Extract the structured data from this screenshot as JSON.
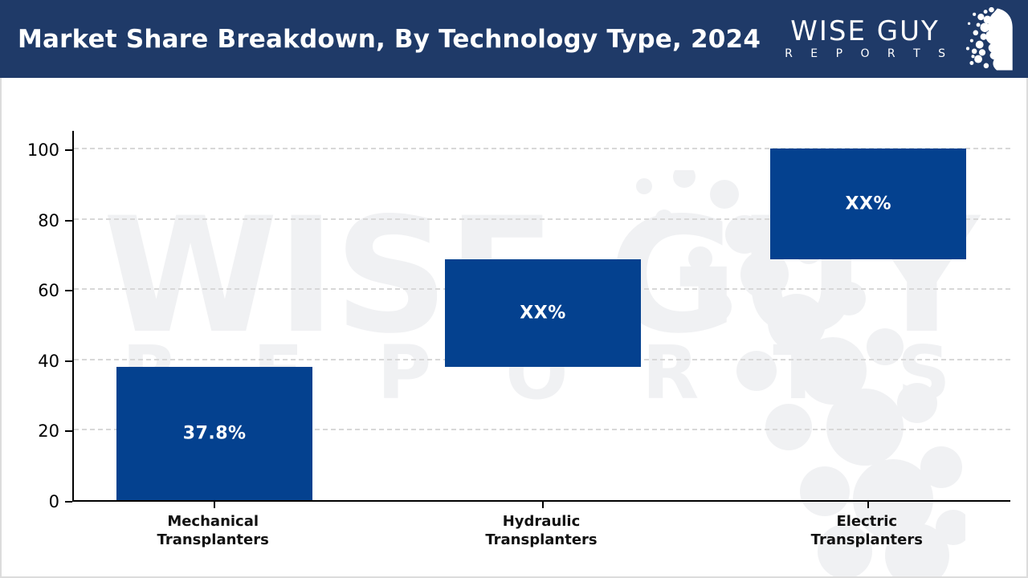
{
  "header": {
    "title": "Market Share Breakdown, By Technology Type, 2024",
    "logo": {
      "line1": "WISE GUY",
      "line2": "R E P O R T S"
    }
  },
  "watermark": {
    "line1": "WISE GUY",
    "line2": "R E P O R T S"
  },
  "colors": {
    "header_bg": "#1f3a68",
    "bar": "#04418f",
    "bar_label": "#ffffff",
    "axis": "#000000",
    "gridline": "#d8d8d8",
    "watermark": "#f0f1f3",
    "border": "#dcdcdc"
  },
  "chart_data": {
    "type": "bar",
    "subtype": "waterfall",
    "title": "Market Share Breakdown, By Technology Type, 2024",
    "categories": [
      "Mechanical\nTransplanters",
      "Hydraulic\nTransplanters",
      "Electric\nTransplanters"
    ],
    "segments": [
      {
        "category": "Mechanical Transplanters",
        "start": 0,
        "end": 37.8,
        "label": "37.8%"
      },
      {
        "category": "Hydraulic Transplanters",
        "start": 37.8,
        "end": 68.5,
        "label": "XX%"
      },
      {
        "category": "Electric Transplanters",
        "start": 68.5,
        "end": 100,
        "label": "XX%"
      }
    ],
    "ylabel": "",
    "xlabel": "",
    "yticks": [
      0,
      20,
      40,
      60,
      80,
      100
    ],
    "ylim": [
      0,
      105.5
    ],
    "grid": "dashed-horizontal",
    "legend": "none"
  }
}
